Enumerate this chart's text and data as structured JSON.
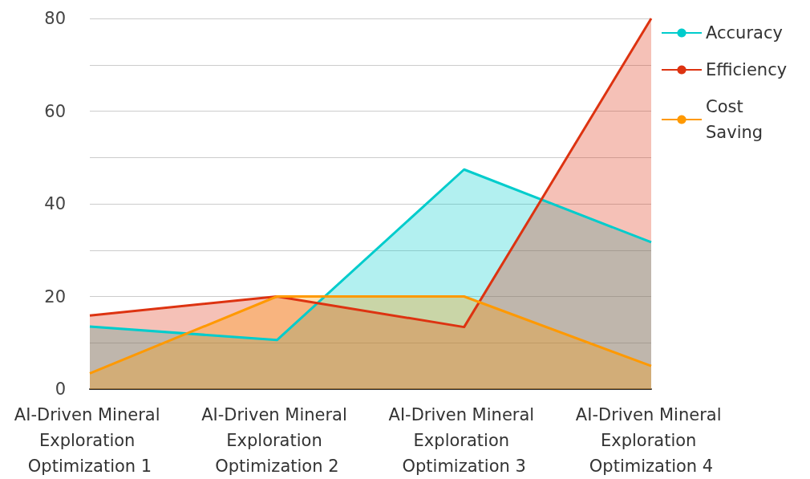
{
  "chart_data": {
    "type": "area",
    "categories": [
      "AI-Driven Mineral Exploration Optimization 1",
      "AI-Driven Mineral Exploration Optimization 2",
      "AI-Driven Mineral Exploration Optimization 3",
      "AI-Driven Mineral Exploration Optimization 4"
    ],
    "series": [
      {
        "name": "Accuracy",
        "color": "#00cccc",
        "values": [
          13.5,
          10.6,
          47.4,
          31.7
        ]
      },
      {
        "name": "Efficiency",
        "color": "#dd3311",
        "values": [
          15.9,
          20,
          13.4,
          80
        ]
      },
      {
        "name": "Cost Saving",
        "color": "#ff9900",
        "values": [
          3.4,
          20,
          20,
          5
        ]
      }
    ],
    "ylim": [
      0,
      80
    ],
    "yticks": [
      0,
      {
        "value": 10,
        "label": null
      },
      20,
      {
        "value": 30,
        "label": null
      },
      40,
      {
        "value": 50,
        "label": null
      },
      60,
      {
        "value": 70,
        "label": null
      },
      80
    ],
    "grid": "y",
    "legend": "top right",
    "marker": "none",
    "line_style": "solid"
  }
}
